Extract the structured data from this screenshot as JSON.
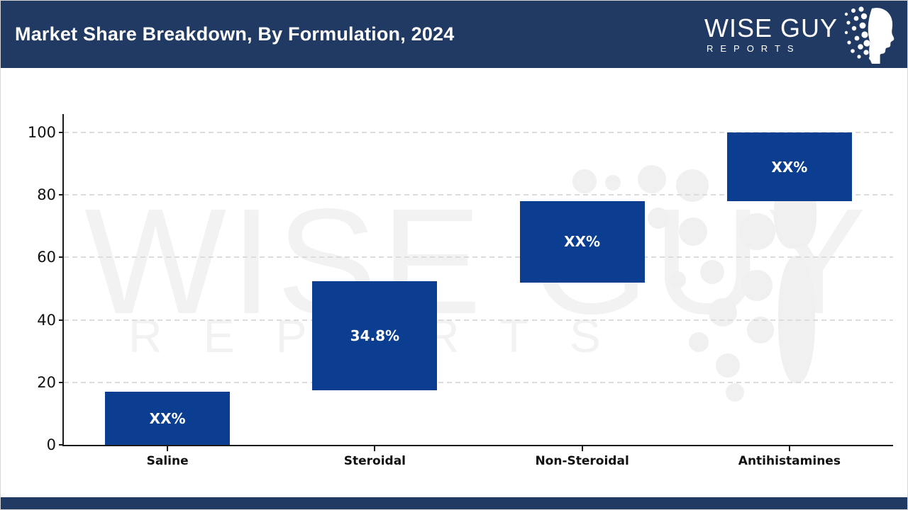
{
  "header": {
    "title": "Market Share Breakdown, By Formulation, 2024",
    "logo": {
      "name": "WISE GUY",
      "sub": "REPORTS"
    }
  },
  "watermark": {
    "line1": "WISE GUY",
    "line2": "REPORTS"
  },
  "chart_data": {
    "type": "bar",
    "variant": "floating-waterfall",
    "title": "Market Share Breakdown, By Formulation, 2024",
    "categories": [
      "Saline",
      "Steroidal",
      "Non-Steroidal",
      "Antihistamines"
    ],
    "series": [
      {
        "name": "Market share (%)",
        "segments": [
          {
            "category": "Saline",
            "from": 0,
            "to": 17,
            "label": "XX%"
          },
          {
            "category": "Steroidal",
            "from": 17.5,
            "to": 52.3,
            "label": "34.8%"
          },
          {
            "category": "Non-Steroidal",
            "from": 52,
            "to": 78,
            "label": "XX%"
          },
          {
            "category": "Antihistamines",
            "from": 78,
            "to": 100,
            "label": "XX%"
          }
        ]
      }
    ],
    "ylim": [
      0,
      105
    ],
    "yticks": [
      0,
      20,
      40,
      60,
      80,
      100
    ],
    "xlabel": "",
    "ylabel": "",
    "grid": "horizontal-dashed",
    "legend_position": "none",
    "bar_color": "#0b3e91",
    "bar_label_color": "#ffffff"
  },
  "colors": {
    "header_bg": "#213a63",
    "footer_bg": "#213a63",
    "bar": "#0b3e91",
    "grid": "#dcdcdc",
    "axis": "#1a1a1a",
    "watermark": "#f2f2f2",
    "page_border": "#d6d6d6"
  }
}
